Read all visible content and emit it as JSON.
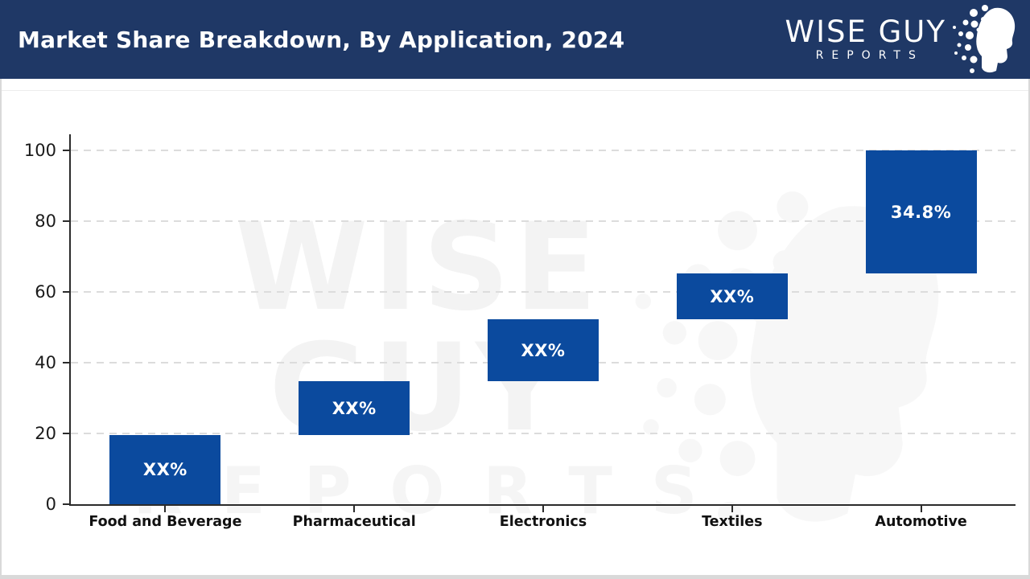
{
  "header": {
    "title": "Market Share Breakdown, By Application, 2024",
    "logo": {
      "line1": "WISE GUY",
      "line2": "REPORTS"
    }
  },
  "watermark": {
    "line1": "WISE GUY",
    "line2": "REPORTS"
  },
  "colors": {
    "header_bg": "#1f3866",
    "bar": "#0b4a9e",
    "axis": "#2b2b2b",
    "grid": "#dcdcdc",
    "frame": "#d9d9d9",
    "bar_label": "#ffffff"
  },
  "chart_data": {
    "type": "bar",
    "variant": "waterfall-floating-bars",
    "title": "Market Share Breakdown, By Application, 2024",
    "categories": [
      "Food and Beverage",
      "Pharmaceutical",
      "Electronics",
      "Textiles",
      "Automotive"
    ],
    "bars": [
      {
        "category": "Food and Beverage",
        "start": 0,
        "end": 19.5,
        "label": "XX%"
      },
      {
        "category": "Pharmaceutical",
        "start": 19.5,
        "end": 34.8,
        "label": "XX%"
      },
      {
        "category": "Electronics",
        "start": 34.8,
        "end": 52.2,
        "label": "XX%"
      },
      {
        "category": "Textiles",
        "start": 52.2,
        "end": 65.2,
        "label": "XX%"
      },
      {
        "category": "Automotive",
        "start": 65.2,
        "end": 100,
        "label": "34.8%"
      }
    ],
    "xlabel": "",
    "ylabel": "",
    "ylim": [
      0,
      100
    ],
    "yticks": [
      0,
      20,
      40,
      60,
      80,
      100
    ],
    "grid": "horizontal-dashed",
    "legend": "none"
  }
}
